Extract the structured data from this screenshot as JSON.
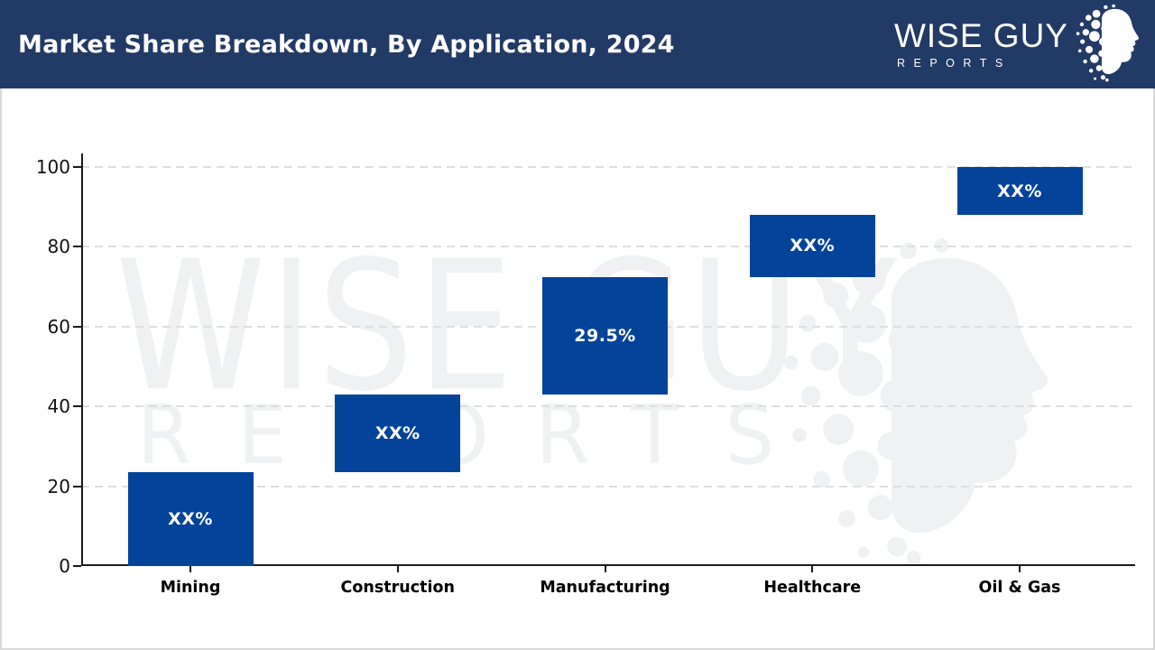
{
  "header": {
    "title": "Market Share Breakdown, By Application, 2024",
    "logo": {
      "name": "WISE GUY",
      "subtitle": "REPORTS"
    }
  },
  "watermark": {
    "line1": "WISE GUY",
    "line2": "REPORTS"
  },
  "colors": {
    "header_navy": "#213a66",
    "bar_blue": "#04439a",
    "gridline_gray": "#dedede",
    "axis_black": "#1a1a1a",
    "bar_label_white": "#ffffff"
  },
  "chart_data": {
    "type": "bar",
    "subtype": "waterfall",
    "title": "Market Share Breakdown, By Application, 2024",
    "categories": [
      "Mining",
      "Construction",
      "Manufacturing",
      "Healthcare",
      "Oil & Gas"
    ],
    "series": [
      {
        "name": "Market Share (%)",
        "segments": [
          {
            "category": "Mining",
            "start": 0,
            "end": 23.5,
            "label": "XX%"
          },
          {
            "category": "Construction",
            "start": 23.5,
            "end": 43,
            "label": "XX%"
          },
          {
            "category": "Manufacturing",
            "start": 43,
            "end": 72.5,
            "label": "29.5%"
          },
          {
            "category": "Healthcare",
            "start": 72.5,
            "end": 88,
            "label": "XX%"
          },
          {
            "category": "Oil & Gas",
            "start": 88,
            "end": 100,
            "label": "XX%"
          }
        ]
      }
    ],
    "xlabel": "",
    "ylabel": "",
    "ylim": [
      0,
      100
    ],
    "yticks": [
      0,
      20,
      40,
      60,
      80,
      100
    ],
    "grid": "horizontal-dashed",
    "legend": "none",
    "bar_color": "#04439a",
    "label_color": "#ffffff"
  }
}
